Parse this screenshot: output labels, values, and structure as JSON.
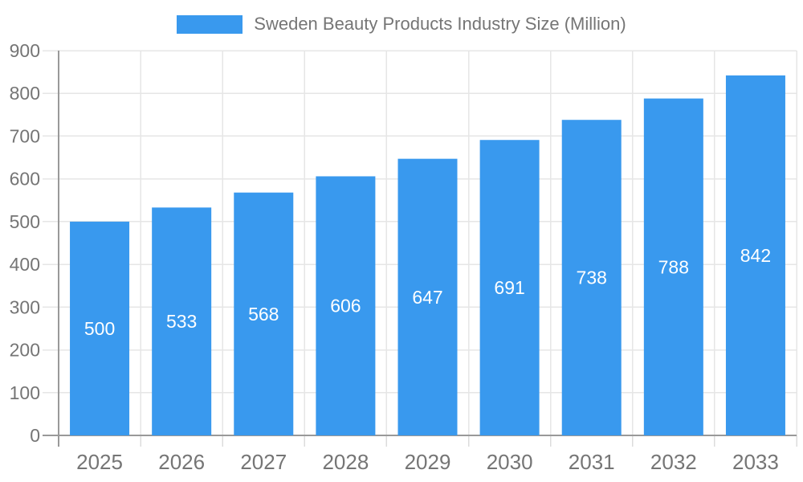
{
  "legend": {
    "label": "Sweden Beauty Products Industry Size (Million)"
  },
  "chart_data": {
    "type": "bar",
    "title": "Sweden Beauty Products Industry Size (Million)",
    "categories": [
      "2025",
      "2026",
      "2027",
      "2028",
      "2029",
      "2030",
      "2031",
      "2032",
      "2033"
    ],
    "values": [
      500,
      533,
      568,
      606,
      647,
      691,
      738,
      788,
      842
    ],
    "xlabel": "",
    "ylabel": "",
    "ylim": [
      0,
      900
    ],
    "yticks": [
      0,
      100,
      200,
      300,
      400,
      500,
      600,
      700,
      800,
      900
    ],
    "grid": true,
    "legend_position": "top-center",
    "value_labels": "inside-center",
    "colors": {
      "bar": "#3999EE",
      "grid": "#E6E6E6",
      "axis": "#999999",
      "tick": "#DCDCDC",
      "axis_text": "#757575",
      "legend_text": "#757575",
      "value_text": "#FFFFFF",
      "background": "#FFFFFF"
    }
  }
}
